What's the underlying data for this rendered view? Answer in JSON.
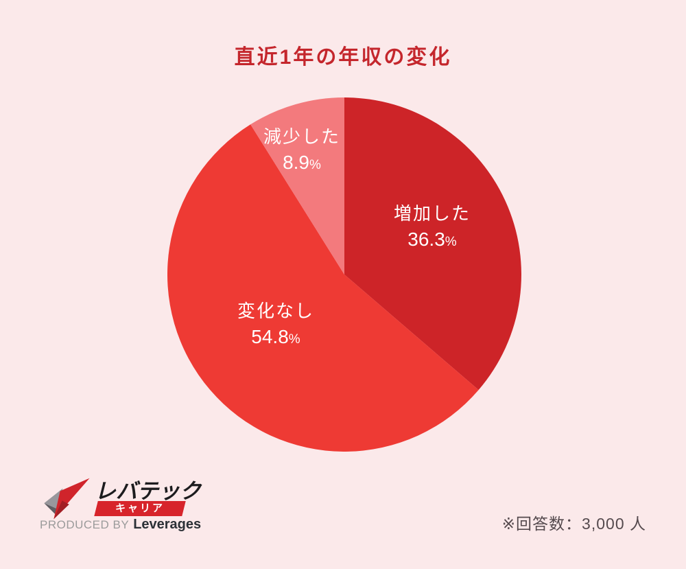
{
  "title": {
    "text": "直近1年の年収の変化"
  },
  "chart_data": {
    "type": "pie",
    "title": "直近1年の年収の変化",
    "unit": "%",
    "start_angle_deg": 0,
    "direction": "clockwise",
    "total_percent": 100,
    "slices": [
      {
        "label": "増加した",
        "value": 36.3,
        "display_value": "36.3",
        "color": "#cd2428"
      },
      {
        "label": "変化なし",
        "value": 54.8,
        "display_value": "54.8",
        "color": "#ee3a34"
      },
      {
        "label": "減少した",
        "value": 8.9,
        "display_value": "8.9",
        "color": "#f37a7d"
      }
    ],
    "label_text_color": "#ffffff",
    "legend": "none"
  },
  "colors": {
    "background": "#fbe9ea",
    "title": "#c4262c",
    "logo_band": "#d7242b"
  },
  "footer": {
    "note": "※回答数：3,000 人",
    "logo": {
      "brand": "レバテック",
      "sub_brand": "キャリア",
      "produced_by": "PRODUCED BY",
      "company": "Leverages"
    }
  }
}
